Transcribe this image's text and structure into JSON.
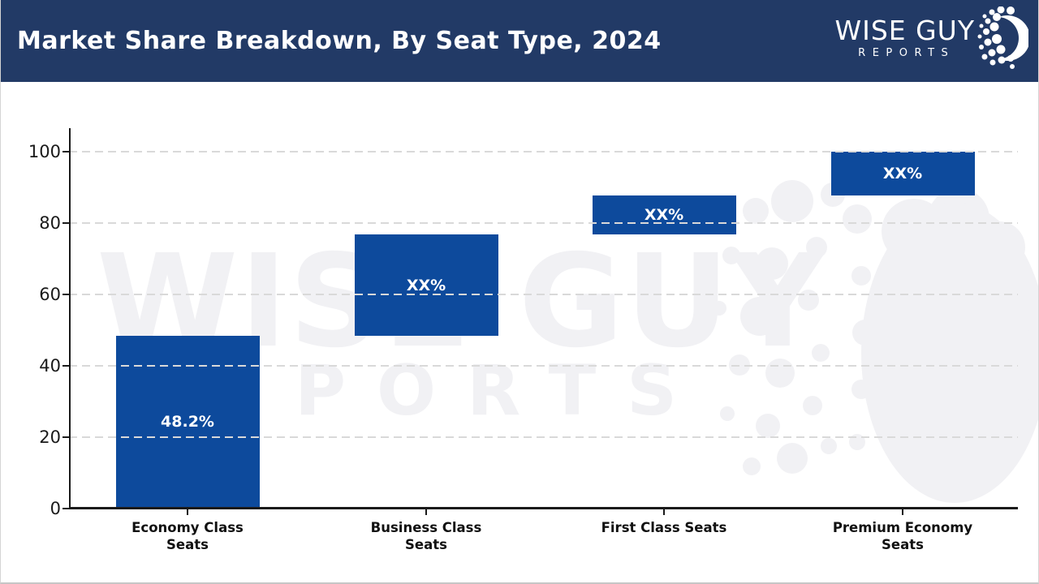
{
  "header": {
    "title": "Market Share Breakdown, By Seat Type, 2024",
    "brand_line1": "WISE GUY",
    "brand_line2": "REPORTS",
    "bg_color": "#223a66"
  },
  "watermark": {
    "line1": "WISE GUY",
    "line2": "PORTS"
  },
  "chart_data": {
    "type": "bar",
    "subtype": "waterfall",
    "title": "Market Share Breakdown, By Seat Type, 2024",
    "categories": [
      "Economy Class\nSeats",
      "Business Class\nSeats",
      "First Class Seats",
      "Premium Economy\nSeats"
    ],
    "segments": [
      {
        "category": "Economy Class Seats",
        "start": 0,
        "end": 48.2,
        "delta": 48.2,
        "label": "48.2%"
      },
      {
        "category": "Business Class Seats",
        "start": 48.2,
        "end": 76.6,
        "delta": 28.4,
        "label": "XX%"
      },
      {
        "category": "First Class Seats",
        "start": 76.6,
        "end": 87.7,
        "delta": 11.1,
        "label": "XX%"
      },
      {
        "category": "Premium Economy Seats",
        "start": 87.7,
        "end": 100.0,
        "delta": 12.3,
        "label": "XX%"
      }
    ],
    "yticks": [
      0,
      20,
      40,
      60,
      80,
      100
    ],
    "ylim": [
      0,
      106
    ],
    "grid": true,
    "legend": false,
    "xlabel": "",
    "ylabel": "",
    "bar_color": "#0d4a9c",
    "bar_label_color": "#ffffff",
    "axis_color": "#1a1a1a",
    "grid_color": "#d9d9d9"
  }
}
